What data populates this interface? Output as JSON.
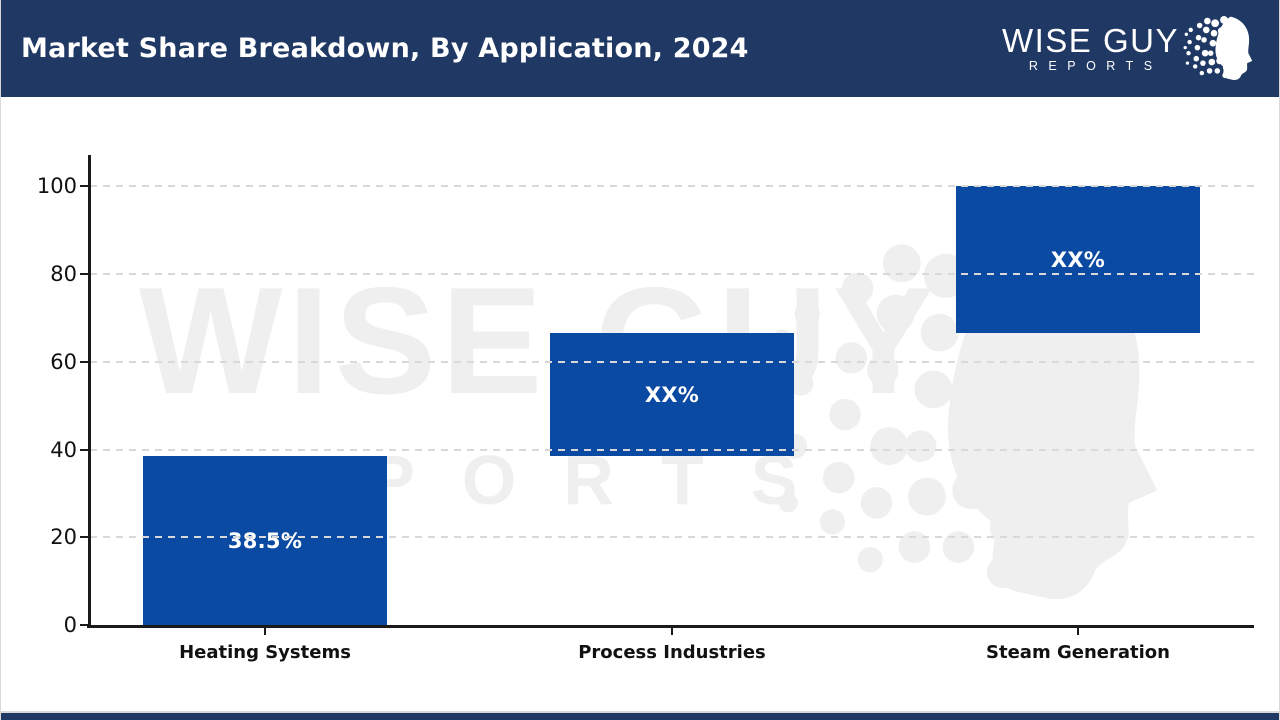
{
  "header": {
    "title": "Market Share Breakdown, By Application, 2024",
    "brand": {
      "line1": "WISE GUY",
      "line2": "REPORTS"
    }
  },
  "watermark": {
    "line1": "WISE GUY",
    "line2": "REPORTS"
  },
  "colors": {
    "header_bg": "#1f3864",
    "bar": "#0b4aa2",
    "bar_label": "#ffffff",
    "gridline": "#d9d9d9",
    "axis": "#1a1a1a",
    "watermark": "#efefef"
  },
  "chart_data": {
    "type": "bar",
    "subtype": "waterfall-stepped",
    "title": "Market Share Breakdown, By Application, 2024",
    "categories": [
      "Heating Systems",
      "Process Industries",
      "Steam Generation"
    ],
    "segments": [
      {
        "category": "Heating Systems",
        "start": 0,
        "end": 38.5,
        "label": "38.5%"
      },
      {
        "category": "Process Industries",
        "start": 38.5,
        "end": 66.5,
        "label": "XX%"
      },
      {
        "category": "Steam Generation",
        "start": 66.5,
        "end": 100,
        "label": "XX%"
      }
    ],
    "xlabel": "",
    "ylabel": "",
    "ylim": [
      0,
      100
    ],
    "yticks": [
      0,
      20,
      40,
      60,
      80,
      100
    ],
    "grid": "horizontal dashed, drawn over bars",
    "legend": "none"
  }
}
